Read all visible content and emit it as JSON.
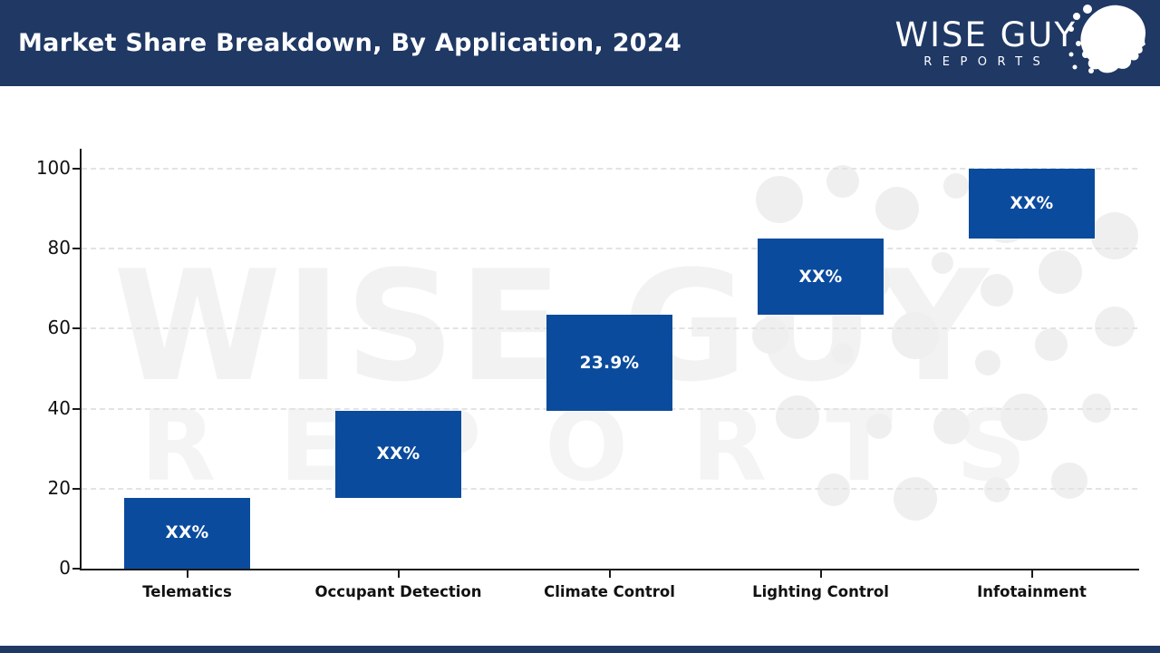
{
  "header": {
    "title": "Market Share Breakdown, By Application, 2024",
    "logo": {
      "line1": "WISE GUY",
      "line2": "REPORTS"
    }
  },
  "watermark": {
    "line1": "WISE GUY",
    "line2": "REPORTS"
  },
  "chart_data": {
    "type": "bar",
    "style": "waterfall",
    "title": "Market Share Breakdown, By Application, 2024",
    "categories": [
      "Telematics",
      "Occupant Detection",
      "Climate Control",
      "Lighting Control",
      "Infotainment"
    ],
    "segments": [
      {
        "category": "Telematics",
        "start": 0,
        "end": 17.8,
        "label": "XX%"
      },
      {
        "category": "Occupant Detection",
        "start": 17.8,
        "end": 39.5,
        "label": "XX%"
      },
      {
        "category": "Climate Control",
        "start": 39.5,
        "end": 63.4,
        "label": "23.9%"
      },
      {
        "category": "Lighting Control",
        "start": 63.4,
        "end": 82.6,
        "label": "XX%"
      },
      {
        "category": "Infotainment",
        "start": 82.6,
        "end": 100,
        "label": "XX%"
      }
    ],
    "xlabel": "",
    "ylabel": "",
    "ylim": [
      0,
      100
    ],
    "yticks": [
      0,
      20,
      40,
      60,
      80,
      100
    ],
    "grid": "horizontal-dashed",
    "legend": "none",
    "bar_color": "#0b4b9d",
    "bar_label_color": "#ffffff",
    "accent_navy": "#1f3864"
  },
  "footer": {}
}
